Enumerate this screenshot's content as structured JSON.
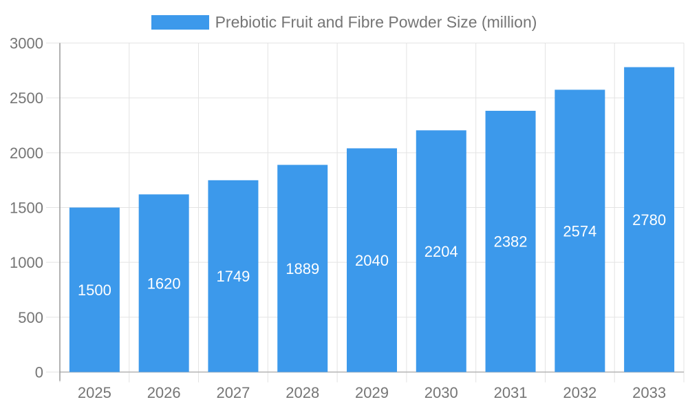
{
  "page": {
    "background": "#ffffff"
  },
  "legend": {
    "label": "Prebiotic Fruit and Fibre Powder Size (million)"
  },
  "chart_data": {
    "type": "bar",
    "title": "Prebiotic Fruit and Fibre Powder Size (million)",
    "categories": [
      "2025",
      "2026",
      "2027",
      "2028",
      "2029",
      "2030",
      "2031",
      "2032",
      "2033"
    ],
    "values": [
      1500,
      1620,
      1749,
      1889,
      2040,
      2204,
      2382,
      2574,
      2780
    ],
    "series": [
      {
        "name": "Prebiotic Fruit and Fibre Powder Size (million)",
        "values": [
          1500,
          1620,
          1749,
          1889,
          2040,
          2204,
          2382,
          2574,
          2780
        ]
      }
    ],
    "xlabel": "",
    "ylabel": "",
    "ylim": [
      0,
      3000
    ],
    "yticks": [
      0,
      500,
      1000,
      1500,
      2000,
      2500,
      3000
    ],
    "grid": true,
    "legend_position": "top",
    "value_label_position": "inside-middle"
  },
  "style": {
    "bar_color": "#3c99eb",
    "label_color": "#757575",
    "grid_color": "#e3e3e3",
    "x_axis_color": "#b3b3b3",
    "y_axis_color": "#999999",
    "value_label_color": "#ffffff"
  }
}
